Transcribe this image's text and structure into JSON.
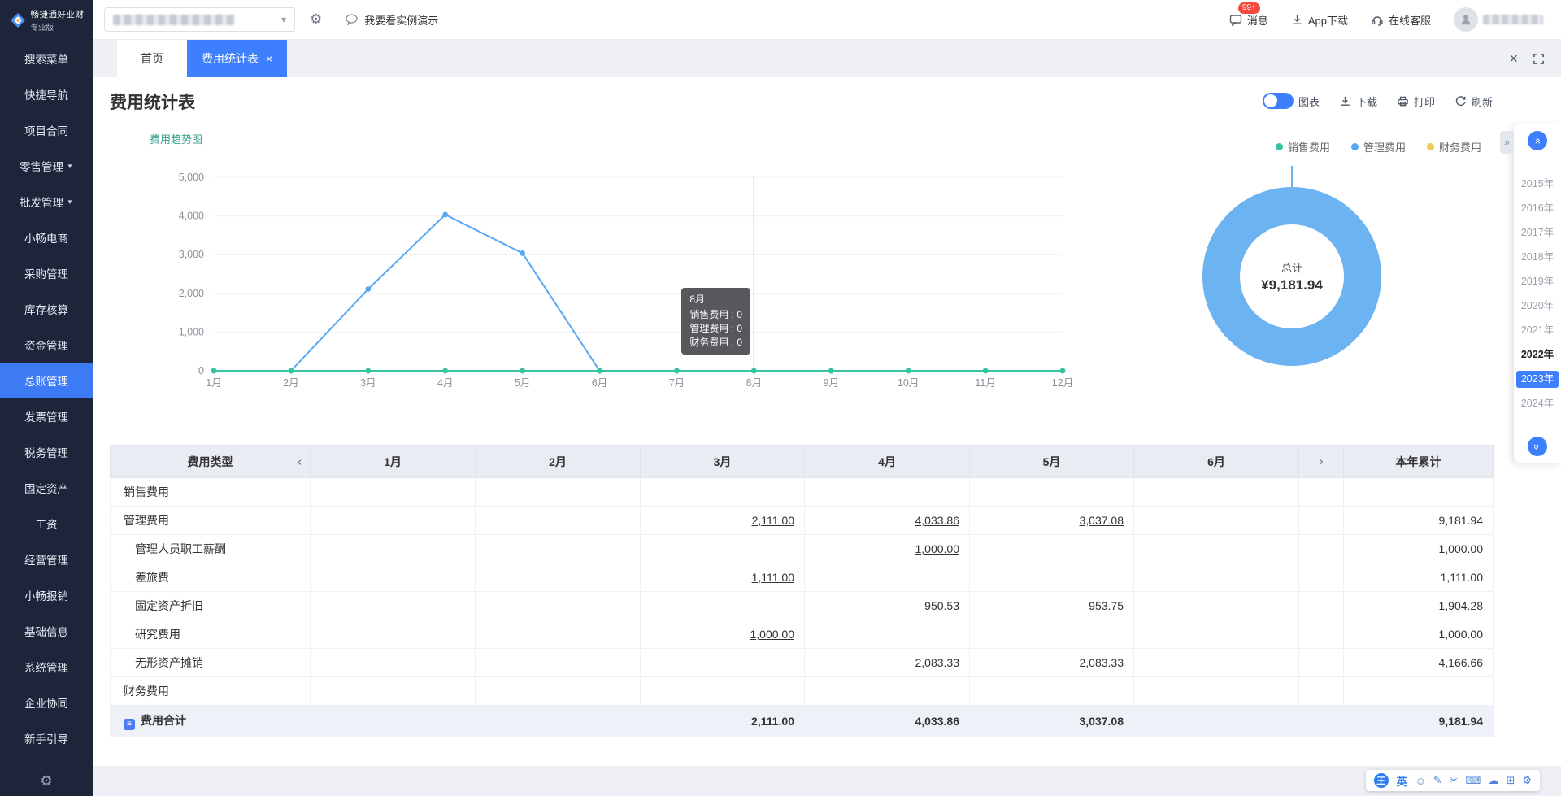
{
  "app": {
    "logo_title": "畅捷通好业财",
    "logo_subtitle": "专业版"
  },
  "icons": {
    "gear": "⚙",
    "chevron_down": "▾",
    "dropdown_arrow": "▼",
    "close": "×",
    "prev": "‹",
    "next": "›",
    "collapse_handle": "»",
    "scroll_up": "»",
    "scroll_down": "»"
  },
  "sidebar": {
    "items": [
      {
        "label": "搜索菜单"
      },
      {
        "label": "快捷导航"
      },
      {
        "label": "项目合同"
      },
      {
        "label": "零售管理",
        "arrow": true
      },
      {
        "label": "批发管理",
        "arrow": true
      },
      {
        "label": "小畅电商"
      },
      {
        "label": "采购管理"
      },
      {
        "label": "库存核算"
      },
      {
        "label": "资金管理"
      },
      {
        "label": "总账管理",
        "active": true
      },
      {
        "label": "发票管理"
      },
      {
        "label": "税务管理"
      },
      {
        "label": "固定资产"
      },
      {
        "label": "工资"
      },
      {
        "label": "经营管理"
      },
      {
        "label": "小畅报销"
      },
      {
        "label": "基础信息"
      },
      {
        "label": "系统管理"
      },
      {
        "label": "企业协同"
      },
      {
        "label": "新手引导"
      }
    ]
  },
  "topbar": {
    "demo_link": "我要看实例演示",
    "messages_label": "消息",
    "messages_badge": "99+",
    "app_download_label": "App下载",
    "support_label": "在线客服"
  },
  "tabs": [
    {
      "label": "首页",
      "active": false
    },
    {
      "label": "费用统计表",
      "active": true,
      "closable": true
    }
  ],
  "page": {
    "title": "费用统计表",
    "toolbar": {
      "chart_toggle_label": "图表",
      "download_label": "下载",
      "print_label": "打印",
      "refresh_label": "刷新"
    }
  },
  "chart_data": [
    {
      "type": "line",
      "title": "费用趋势图",
      "x": [
        "1月",
        "2月",
        "3月",
        "4月",
        "5月",
        "6月",
        "7月",
        "8月",
        "9月",
        "10月",
        "11月",
        "12月"
      ],
      "series": [
        {
          "name": "销售费用",
          "color": "#35c4a2",
          "values": [
            0,
            0,
            0,
            0,
            0,
            0,
            0,
            0,
            0,
            0,
            0,
            0
          ]
        },
        {
          "name": "管理费用",
          "color": "#57a8f4",
          "values": [
            0,
            0,
            2111,
            4033.86,
            3037.08,
            0,
            0,
            0,
            0,
            0,
            0,
            0
          ]
        },
        {
          "name": "财务费用",
          "color": "#f0c75a",
          "values": [
            0,
            0,
            0,
            0,
            0,
            0,
            0,
            0,
            0,
            0,
            0,
            0
          ]
        }
      ],
      "ylim": [
        0,
        5000
      ],
      "yticks": [
        0,
        1000,
        2000,
        3000,
        4000,
        5000
      ],
      "grid": true,
      "legend_position": "top-right",
      "tooltip": {
        "month_index": 7,
        "title": "8月",
        "lines": [
          "销售费用 : 0",
          "管理费用 : 0",
          "财务费用 : 0"
        ],
        "pointer_color": "#5bd3c0"
      }
    },
    {
      "type": "pie",
      "center_label": "总计",
      "center_value": "¥9,181.94",
      "slices": [
        {
          "name": "管理费用",
          "value": 9181.94,
          "color": "#6cb3f1"
        }
      ]
    }
  ],
  "year_panel": {
    "years": [
      "2015年",
      "2016年",
      "2017年",
      "2018年",
      "2019年",
      "2020年",
      "2021年",
      "2022年",
      "2023年",
      "2024年"
    ],
    "selected": "2023年",
    "current": "2022年"
  },
  "table": {
    "columns": [
      "费用类型",
      "1月",
      "2月",
      "3月",
      "4月",
      "5月",
      "6月",
      "本年累计"
    ],
    "rows": [
      {
        "label": "销售费用",
        "indent": 0,
        "cells": [
          "",
          "",
          "",
          "",
          "",
          ""
        ],
        "total": ""
      },
      {
        "label": "管理费用",
        "indent": 0,
        "cells": [
          "",
          "",
          "2,111.00",
          "4,033.86",
          "3,037.08",
          ""
        ],
        "total": "9,181.94"
      },
      {
        "label": "管理人员职工薪酬",
        "indent": 1,
        "cells": [
          "",
          "",
          "",
          "1,000.00",
          "",
          ""
        ],
        "total": "1,000.00"
      },
      {
        "label": "差旅费",
        "indent": 1,
        "cells": [
          "",
          "",
          "1,111.00",
          "",
          "",
          ""
        ],
        "total": "1,111.00"
      },
      {
        "label": "固定资产折旧",
        "indent": 1,
        "cells": [
          "",
          "",
          "",
          "950.53",
          "953.75",
          ""
        ],
        "total": "1,904.28"
      },
      {
        "label": "研究费用",
        "indent": 1,
        "cells": [
          "",
          "",
          "1,000.00",
          "",
          "",
          ""
        ],
        "total": "1,000.00"
      },
      {
        "label": "无形资产摊销",
        "indent": 1,
        "cells": [
          "",
          "",
          "",
          "2,083.33",
          "2,083.33",
          ""
        ],
        "total": "4,166.66"
      },
      {
        "label": "财务费用",
        "indent": 0,
        "cells": [
          "",
          "",
          "",
          "",
          "",
          ""
        ],
        "total": ""
      },
      {
        "label": "费用合计",
        "indent": 0,
        "is_total": true,
        "cells": [
          "",
          "",
          "2,111.00",
          "4,033.86",
          "3,037.08",
          ""
        ],
        "total": "9,181.94"
      }
    ]
  },
  "ime": {
    "logo": "王",
    "lang": "英",
    "icons": [
      {
        "name": "emoji-icon",
        "glyph": "☺"
      },
      {
        "name": "handwriting-icon",
        "glyph": "✎"
      },
      {
        "name": "screenshot-scissors-icon",
        "glyph": "✂"
      },
      {
        "name": "keyboard-icon",
        "glyph": "⌨"
      },
      {
        "name": "skin-cloud-icon",
        "glyph": "☁"
      },
      {
        "name": "apps-grid-icon",
        "glyph": "⊞"
      },
      {
        "name": "ime-settings-icon",
        "glyph": "⚙"
      }
    ]
  }
}
